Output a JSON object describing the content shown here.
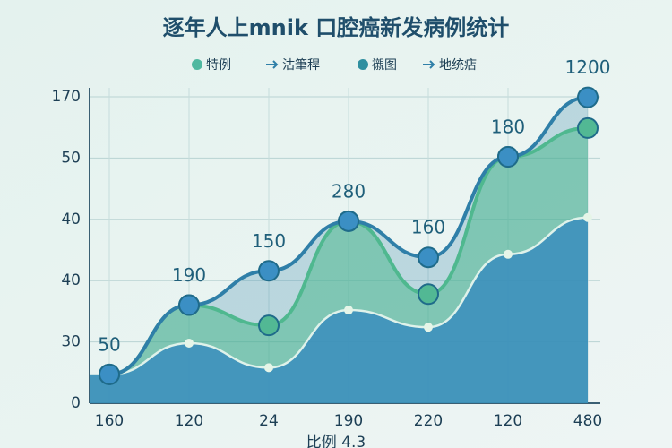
{
  "chart_data": {
    "type": "area-line",
    "title": "逐年人上mnik 口腔癌新发病例统计",
    "legend": [
      "特例",
      "沽筆稈",
      "襯图",
      "地统痁"
    ],
    "categories": [
      "160",
      "120",
      "24",
      "190",
      "220",
      "120",
      "480"
    ],
    "x_label": "比例 4.3",
    "series": [
      {
        "color": "#2f7fa8",
        "values": [
          0.47,
          1.6,
          2.16,
          2.97,
          2.38,
          4.02,
          4.99
        ]
      },
      {
        "color": "#4fb88f",
        "values": [
          0.47,
          1.6,
          1.27,
          2.97,
          1.78,
          4.02,
          4.49
        ]
      },
      {
        "color": "#3a8dbd",
        "values": [
          0.47,
          0.98,
          0.58,
          1.52,
          1.24,
          2.43,
          3.03
        ]
      }
    ],
    "annotations": [
      "50",
      "190",
      "150",
      "280",
      "160",
      "180",
      "1200"
    ],
    "ylim": [
      0,
      5
    ],
    "yticks": [
      0,
      {
        "value": 1,
        "label": "30"
      },
      {
        "value": 2,
        "label": "40"
      },
      {
        "value": 3,
        "label": "40"
      },
      {
        "value": 4,
        "label": "50"
      },
      {
        "value": 5,
        "label": "170"
      }
    ],
    "grid": true
  }
}
